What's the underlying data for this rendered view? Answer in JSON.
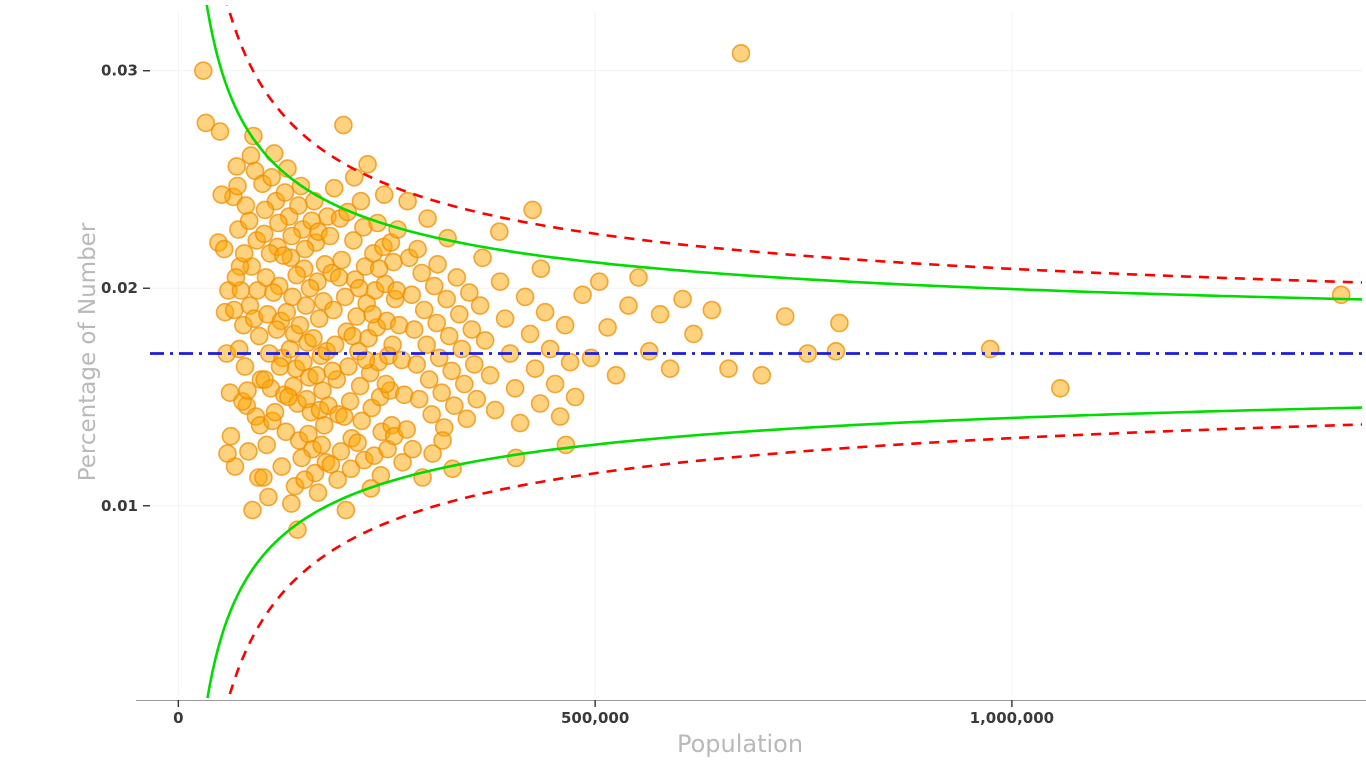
{
  "chart_data": {
    "type": "scatter",
    "variant": "funnel-plot",
    "title": "",
    "xlabel": "Population",
    "ylabel": "Percentage of Number",
    "xlim": [
      -34000,
      1420000
    ],
    "ylim": [
      0.0013,
      0.0327
    ],
    "grid": "light",
    "legend": "none",
    "x_ticks": [
      {
        "value": 0,
        "label": "0"
      },
      {
        "value": 500000,
        "label": "500,000"
      },
      {
        "value": 1000000,
        "label": "1,000,000"
      }
    ],
    "y_ticks": [
      {
        "value": 0.01,
        "label": "0.01"
      },
      {
        "value": 0.02,
        "label": "0.02"
      },
      {
        "value": 0.03,
        "label": "0.03"
      }
    ],
    "mean_line": {
      "value": 0.017,
      "color": "#1b1be0",
      "style": "dash-dot",
      "width": 2.8
    },
    "control_limits": {
      "se_numerator": 1.511,
      "inner": {
        "z": 1.96,
        "color": "#00dc00",
        "style": "solid",
        "width": 2.6
      },
      "outer": {
        "z": 2.576,
        "color": "#ff0000",
        "style": "dashed",
        "width": 2.6
      }
    },
    "point_style": {
      "fill": "#ffa500",
      "fill_opacity": 0.5,
      "stroke": "#f08c00",
      "stroke_opacity": 0.75,
      "radius": 8.5
    },
    "points": [
      [
        30000,
        0.03
      ],
      [
        33000,
        0.0276
      ],
      [
        50000,
        0.0272
      ],
      [
        48000,
        0.0221
      ],
      [
        55000,
        0.0218
      ],
      [
        60000,
        0.0199
      ],
      [
        58000,
        0.017
      ],
      [
        62000,
        0.0152
      ],
      [
        66000,
        0.0242
      ],
      [
        70000,
        0.0256
      ],
      [
        72000,
        0.0227
      ],
      [
        75000,
        0.0199
      ],
      [
        78000,
        0.0183
      ],
      [
        80000,
        0.0164
      ],
      [
        82000,
        0.0146
      ],
      [
        85000,
        0.0231
      ],
      [
        88000,
        0.021
      ],
      [
        90000,
        0.027
      ],
      [
        92000,
        0.0254
      ],
      [
        95000,
        0.0199
      ],
      [
        97000,
        0.0178
      ],
      [
        99000,
        0.0158
      ],
      [
        63000,
        0.0132
      ],
      [
        68000,
        0.0118
      ],
      [
        84000,
        0.0125
      ],
      [
        93000,
        0.0141
      ],
      [
        56000,
        0.0189
      ],
      [
        74000,
        0.021
      ],
      [
        86000,
        0.0192
      ],
      [
        94000,
        0.0222
      ],
      [
        98000,
        0.0137
      ],
      [
        52000,
        0.0243
      ],
      [
        77000,
        0.0148
      ],
      [
        89000,
        0.0098
      ],
      [
        96000,
        0.0113
      ],
      [
        69000,
        0.0205
      ],
      [
        81000,
        0.0238
      ],
      [
        91000,
        0.0186
      ],
      [
        59000,
        0.0124
      ],
      [
        87000,
        0.0261
      ],
      [
        73000,
        0.0172
      ],
      [
        67000,
        0.019
      ],
      [
        79000,
        0.0216
      ],
      [
        83000,
        0.0153
      ],
      [
        71000,
        0.0247
      ],
      [
        101000,
        0.0248
      ],
      [
        103000,
        0.0225
      ],
      [
        105000,
        0.0205
      ],
      [
        107000,
        0.0188
      ],
      [
        109000,
        0.017
      ],
      [
        111000,
        0.0154
      ],
      [
        113000,
        0.0139
      ],
      [
        115000,
        0.0262
      ],
      [
        117000,
        0.024
      ],
      [
        119000,
        0.0219
      ],
      [
        121000,
        0.0201
      ],
      [
        123000,
        0.0185
      ],
      [
        125000,
        0.0168
      ],
      [
        127000,
        0.0151
      ],
      [
        129000,
        0.0134
      ],
      [
        131000,
        0.0255
      ],
      [
        133000,
        0.0233
      ],
      [
        135000,
        0.0214
      ],
      [
        137000,
        0.0196
      ],
      [
        139000,
        0.0179
      ],
      [
        141000,
        0.0163
      ],
      [
        143000,
        0.0147
      ],
      [
        145000,
        0.013
      ],
      [
        147000,
        0.0247
      ],
      [
        149000,
        0.0227
      ],
      [
        151000,
        0.0209
      ],
      [
        153000,
        0.0192
      ],
      [
        155000,
        0.0175
      ],
      [
        157000,
        0.0159
      ],
      [
        159000,
        0.0143
      ],
      [
        161000,
        0.0126
      ],
      [
        163000,
        0.024
      ],
      [
        165000,
        0.0221
      ],
      [
        167000,
        0.0203
      ],
      [
        169000,
        0.0186
      ],
      [
        171000,
        0.0169
      ],
      [
        173000,
        0.0153
      ],
      [
        175000,
        0.0137
      ],
      [
        177000,
        0.012
      ],
      [
        179000,
        0.0233
      ],
      [
        102000,
        0.0113
      ],
      [
        106000,
        0.0128
      ],
      [
        110000,
        0.0216
      ],
      [
        114000,
        0.0198
      ],
      [
        118000,
        0.0181
      ],
      [
        122000,
        0.0164
      ],
      [
        126000,
        0.0215
      ],
      [
        130000,
        0.0189
      ],
      [
        134000,
        0.0172
      ],
      [
        138000,
        0.0155
      ],
      [
        142000,
        0.0206
      ],
      [
        146000,
        0.0183
      ],
      [
        150000,
        0.0166
      ],
      [
        154000,
        0.0149
      ],
      [
        158000,
        0.02
      ],
      [
        162000,
        0.0177
      ],
      [
        166000,
        0.016
      ],
      [
        170000,
        0.0144
      ],
      [
        174000,
        0.0194
      ],
      [
        178000,
        0.0171
      ],
      [
        104000,
        0.0236
      ],
      [
        108000,
        0.0104
      ],
      [
        112000,
        0.0251
      ],
      [
        116000,
        0.0143
      ],
      [
        120000,
        0.023
      ],
      [
        124000,
        0.0118
      ],
      [
        128000,
        0.0244
      ],
      [
        132000,
        0.015
      ],
      [
        136000,
        0.0224
      ],
      [
        140000,
        0.0109
      ],
      [
        144000,
        0.0238
      ],
      [
        148000,
        0.0122
      ],
      [
        152000,
        0.0218
      ],
      [
        156000,
        0.0133
      ],
      [
        160000,
        0.0231
      ],
      [
        164000,
        0.0115
      ],
      [
        168000,
        0.0226
      ],
      [
        172000,
        0.0128
      ],
      [
        176000,
        0.0211
      ],
      [
        180000,
        0.0146
      ],
      [
        103500,
        0.0158
      ],
      [
        143000,
        0.0089
      ],
      [
        135500,
        0.0101
      ],
      [
        151500,
        0.0112
      ],
      [
        167500,
        0.0106
      ],
      [
        182000,
        0.0224
      ],
      [
        184000,
        0.0207
      ],
      [
        186000,
        0.019
      ],
      [
        188000,
        0.0174
      ],
      [
        190000,
        0.0158
      ],
      [
        192000,
        0.0142
      ],
      [
        194000,
        0.0232
      ],
      [
        196000,
        0.0213
      ],
      [
        198000,
        0.0275
      ],
      [
        200000,
        0.0196
      ],
      [
        202000,
        0.018
      ],
      [
        204000,
        0.0164
      ],
      [
        206000,
        0.0148
      ],
      [
        208000,
        0.0131
      ],
      [
        210000,
        0.0222
      ],
      [
        212000,
        0.0204
      ],
      [
        214000,
        0.0187
      ],
      [
        216000,
        0.0171
      ],
      [
        218000,
        0.0155
      ],
      [
        220000,
        0.0139
      ],
      [
        222000,
        0.0228
      ],
      [
        224000,
        0.021
      ],
      [
        226000,
        0.0193
      ],
      [
        228000,
        0.0177
      ],
      [
        230000,
        0.0161
      ],
      [
        232000,
        0.0145
      ],
      [
        234000,
        0.0216
      ],
      [
        236000,
        0.0199
      ],
      [
        238000,
        0.0182
      ],
      [
        240000,
        0.0166
      ],
      [
        242000,
        0.015
      ],
      [
        244000,
        0.0134
      ],
      [
        246000,
        0.0219
      ],
      [
        248000,
        0.0202
      ],
      [
        250000,
        0.0185
      ],
      [
        252000,
        0.0169
      ],
      [
        254000,
        0.0153
      ],
      [
        256000,
        0.0137
      ],
      [
        258000,
        0.0212
      ],
      [
        260000,
        0.0195
      ],
      [
        183000,
        0.0119
      ],
      [
        187000,
        0.0246
      ],
      [
        191000,
        0.0112
      ],
      [
        195000,
        0.0125
      ],
      [
        199000,
        0.0141
      ],
      [
        203000,
        0.0235
      ],
      [
        207000,
        0.0117
      ],
      [
        211000,
        0.0251
      ],
      [
        215000,
        0.0129
      ],
      [
        219000,
        0.024
      ],
      [
        223000,
        0.0121
      ],
      [
        227000,
        0.0257
      ],
      [
        231000,
        0.0108
      ],
      [
        235000,
        0.0123
      ],
      [
        239000,
        0.023
      ],
      [
        243000,
        0.0114
      ],
      [
        247000,
        0.0243
      ],
      [
        251000,
        0.0126
      ],
      [
        255000,
        0.0221
      ],
      [
        259000,
        0.0132
      ],
      [
        185000,
        0.0162
      ],
      [
        193000,
        0.0205
      ],
      [
        201000,
        0.0098
      ],
      [
        209000,
        0.0178
      ],
      [
        217000,
        0.02
      ],
      [
        225000,
        0.0167
      ],
      [
        233000,
        0.0188
      ],
      [
        241000,
        0.0209
      ],
      [
        249000,
        0.0156
      ],
      [
        257000,
        0.0174
      ],
      [
        262000,
        0.0199
      ],
      [
        265000,
        0.0183
      ],
      [
        268000,
        0.0167
      ],
      [
        271000,
        0.0151
      ],
      [
        274000,
        0.0135
      ],
      [
        277000,
        0.0214
      ],
      [
        280000,
        0.0197
      ],
      [
        283000,
        0.0181
      ],
      [
        286000,
        0.0165
      ],
      [
        289000,
        0.0149
      ],
      [
        292000,
        0.0207
      ],
      [
        295000,
        0.019
      ],
      [
        298000,
        0.0174
      ],
      [
        301000,
        0.0158
      ],
      [
        304000,
        0.0142
      ],
      [
        307000,
        0.0201
      ],
      [
        310000,
        0.0184
      ],
      [
        313000,
        0.0168
      ],
      [
        316000,
        0.0152
      ],
      [
        319000,
        0.0136
      ],
      [
        322000,
        0.0195
      ],
      [
        325000,
        0.0178
      ],
      [
        328000,
        0.0162
      ],
      [
        331000,
        0.0146
      ],
      [
        334000,
        0.0205
      ],
      [
        337000,
        0.0188
      ],
      [
        340000,
        0.0172
      ],
      [
        343000,
        0.0156
      ],
      [
        346000,
        0.014
      ],
      [
        349000,
        0.0198
      ],
      [
        352000,
        0.0181
      ],
      [
        355000,
        0.0165
      ],
      [
        358000,
        0.0149
      ],
      [
        263000,
        0.0227
      ],
      [
        269000,
        0.012
      ],
      [
        275000,
        0.024
      ],
      [
        281000,
        0.0126
      ],
      [
        287000,
        0.0218
      ],
      [
        293000,
        0.0113
      ],
      [
        299000,
        0.0232
      ],
      [
        305000,
        0.0124
      ],
      [
        311000,
        0.0211
      ],
      [
        317000,
        0.013
      ],
      [
        323000,
        0.0223
      ],
      [
        329000,
        0.0117
      ],
      [
        362000,
        0.0192
      ],
      [
        368000,
        0.0176
      ],
      [
        374000,
        0.016
      ],
      [
        380000,
        0.0144
      ],
      [
        386000,
        0.0203
      ],
      [
        392000,
        0.0186
      ],
      [
        398000,
        0.017
      ],
      [
        404000,
        0.0154
      ],
      [
        410000,
        0.0138
      ],
      [
        416000,
        0.0196
      ],
      [
        422000,
        0.0179
      ],
      [
        428000,
        0.0163
      ],
      [
        434000,
        0.0147
      ],
      [
        440000,
        0.0189
      ],
      [
        446000,
        0.0172
      ],
      [
        452000,
        0.0156
      ],
      [
        458000,
        0.0141
      ],
      [
        464000,
        0.0183
      ],
      [
        470000,
        0.0166
      ],
      [
        476000,
        0.015
      ],
      [
        365000,
        0.0214
      ],
      [
        385000,
        0.0226
      ],
      [
        425000,
        0.0236
      ],
      [
        405000,
        0.0122
      ],
      [
        435000,
        0.0209
      ],
      [
        465000,
        0.0128
      ],
      [
        485000,
        0.0197
      ],
      [
        495000,
        0.0168
      ],
      [
        505000,
        0.0203
      ],
      [
        515000,
        0.0182
      ],
      [
        525000,
        0.016
      ],
      [
        540000,
        0.0192
      ],
      [
        552000,
        0.0205
      ],
      [
        565000,
        0.0171
      ],
      [
        578000,
        0.0188
      ],
      [
        590000,
        0.0163
      ],
      [
        605000,
        0.0195
      ],
      [
        618000,
        0.0179
      ],
      [
        640000,
        0.019
      ],
      [
        660000,
        0.0163
      ],
      [
        675000,
        0.0308
      ],
      [
        700000,
        0.016
      ],
      [
        728000,
        0.0187
      ],
      [
        755000,
        0.017
      ],
      [
        789000,
        0.0171
      ],
      [
        793000,
        0.0184
      ],
      [
        974000,
        0.0172
      ],
      [
        1058000,
        0.0154
      ],
      [
        1395000,
        0.0197
      ]
    ]
  }
}
